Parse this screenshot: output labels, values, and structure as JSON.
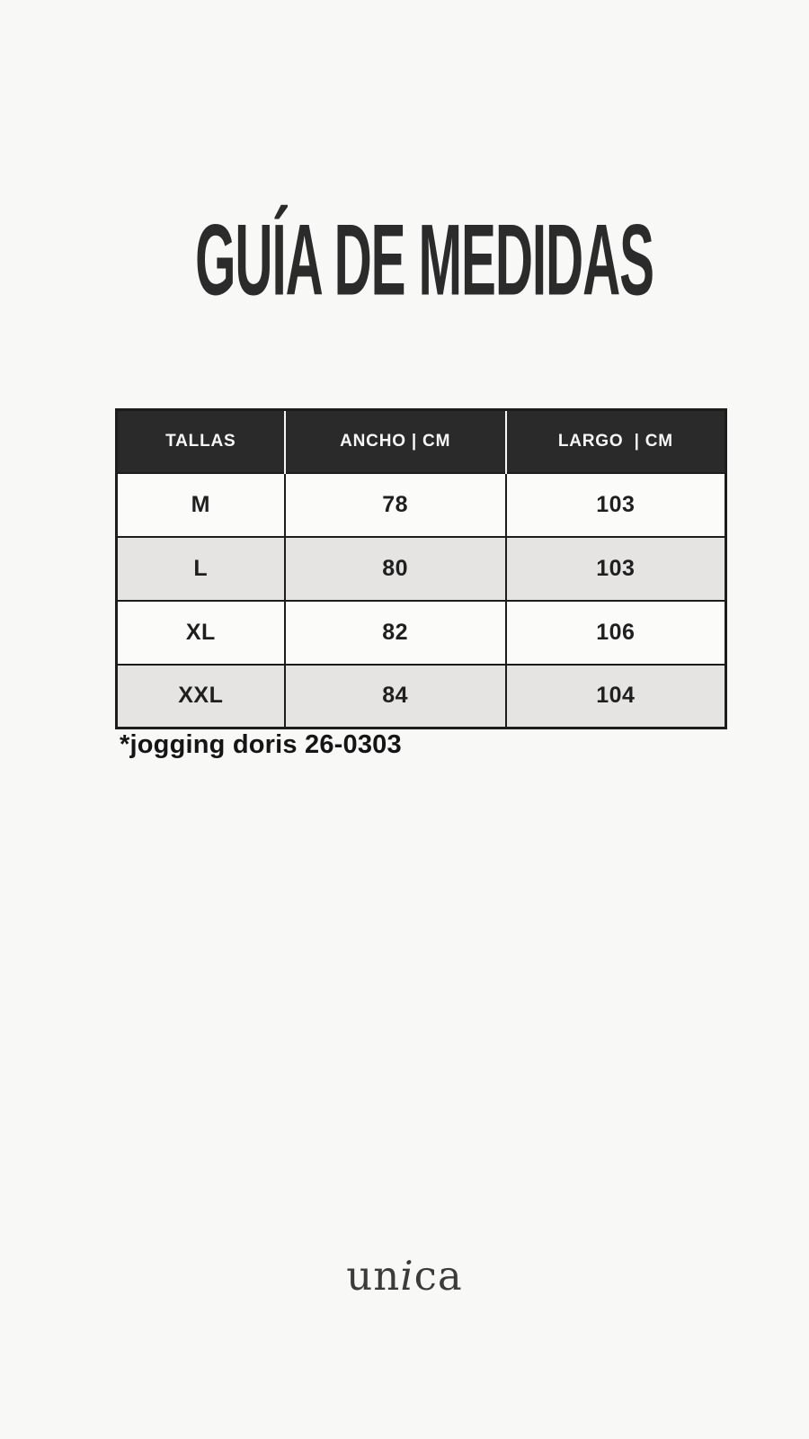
{
  "page": {
    "title": "GUÍA DE MEDIDAS",
    "footnote": "*jogging doris 26-0303",
    "background_color": "#f8f8f7"
  },
  "size_table": {
    "columns": [
      "TALLAS",
      "ANCHO | CM",
      "LARGO  | CM"
    ],
    "rows": [
      {
        "size": "M",
        "width_cm": "78",
        "length_cm": "103"
      },
      {
        "size": "L",
        "width_cm": "80",
        "length_cm": "103"
      },
      {
        "size": "XL",
        "width_cm": "82",
        "length_cm": "106"
      },
      {
        "size": "XXL",
        "width_cm": "84",
        "length_cm": "104"
      }
    ],
    "header_bg": "#2a2a2a",
    "header_text_color": "#f7f7f7",
    "row_light_bg": "#fbfbfa",
    "row_gray_bg": "#e5e4e3",
    "border_color": "#1d1d1d"
  },
  "brand": {
    "name_start": "un",
    "name_italic": "i",
    "name_end": "ca"
  }
}
